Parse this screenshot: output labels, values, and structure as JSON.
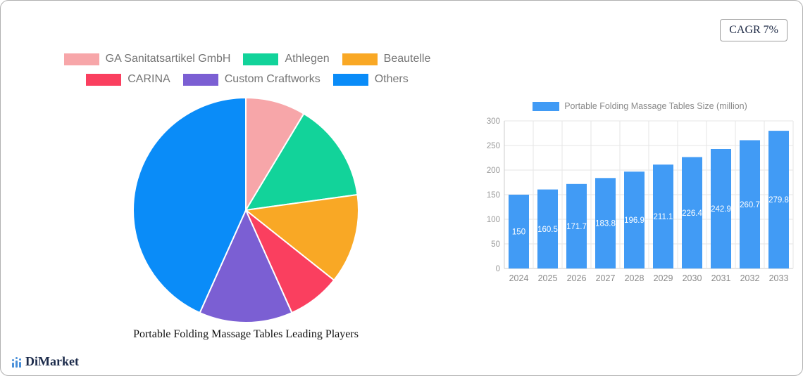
{
  "badge": {
    "label": "CAGR 7%"
  },
  "brand": {
    "name": "DiMarket"
  },
  "chart_data": [
    {
      "type": "pie",
      "title": "Portable Folding Massage Tables Leading Players",
      "labels": [
        "GA Sanitatsartikel GmbH",
        "Athlegen",
        "Beautelle",
        "CARINA",
        "Custom Craftworks",
        "Others"
      ],
      "values": [
        8.6,
        14.2,
        12.9,
        7.6,
        13.4,
        43.3
      ],
      "colors": [
        "#f7a6a9",
        "#12d39a",
        "#f9a825",
        "#fa3f5f",
        "#7b5fd3",
        "#0a8cf8"
      ],
      "legend_rows": [
        3,
        3
      ],
      "start_angle_deg": 0,
      "legend_position": "top"
    },
    {
      "type": "bar",
      "legend_label": "Portable Folding Massage Tables Size (million)",
      "categories": [
        "2024",
        "2025",
        "2026",
        "2027",
        "2028",
        "2029",
        "2030",
        "2031",
        "2032",
        "2033"
      ],
      "values": [
        150,
        160.5,
        171.7,
        183.8,
        196.9,
        211.1,
        226.4,
        242.9,
        260.7,
        279.8
      ],
      "value_labels": [
        "150",
        "160.5",
        "171.7",
        "183.8",
        "196.9",
        "211.1",
        "226.4",
        "242.9",
        "260.7",
        "279.8"
      ],
      "bar_color": "#419bf5",
      "value_label_color": "#ffffff",
      "axis_label_color": "#999999",
      "grid_color": "#e5e5e5",
      "ylim": [
        0,
        300
      ],
      "yticks": [
        0,
        50,
        100,
        150,
        200,
        250,
        300
      ],
      "grid": true,
      "legend_position": "top"
    }
  ]
}
